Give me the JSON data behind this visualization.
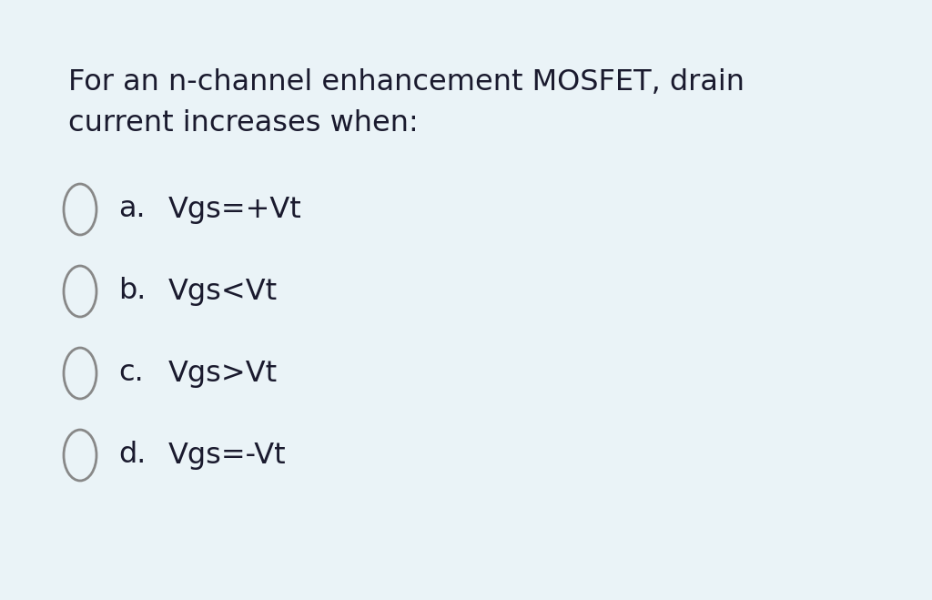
{
  "background_color": "#eaf3f7",
  "question_line1": "For an n-channel enhancement MOSFET, drain",
  "question_line2": "current increases when:",
  "options": [
    {
      "label": "a.",
      "text": "Vgs=+Vt"
    },
    {
      "label": "b.",
      "text": "Vgs<Vt"
    },
    {
      "label": "c.",
      "text": "Vgs>Vt"
    },
    {
      "label": "d.",
      "text": "Vgs=-Vt"
    }
  ],
  "text_color": "#1a1a2e",
  "circle_edge_color": "#888888",
  "circle_linewidth": 2.0,
  "question_fontsize": 23,
  "option_fontsize": 23
}
